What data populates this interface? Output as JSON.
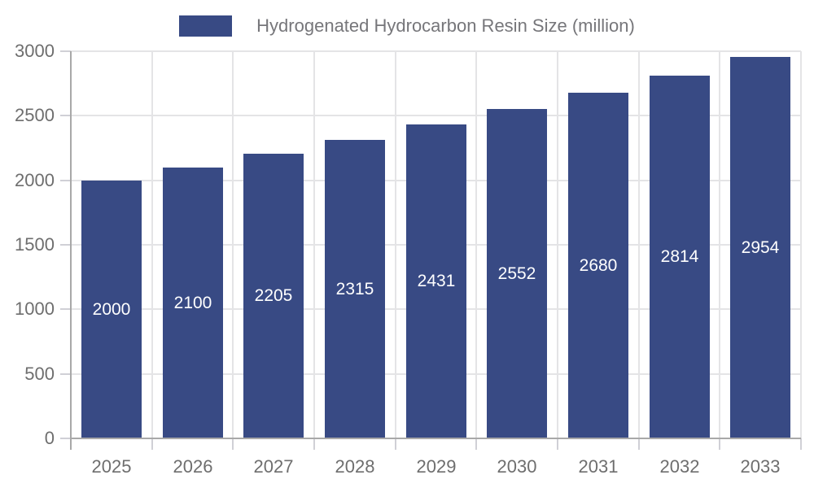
{
  "legend": {
    "label": "Hydrogenated Hydrocarbon Resin Size (million)"
  },
  "chart_data": {
    "type": "bar",
    "title": "",
    "xlabel": "",
    "ylabel": "",
    "categories": [
      "2025",
      "2026",
      "2027",
      "2028",
      "2029",
      "2030",
      "2031",
      "2032",
      "2033"
    ],
    "values": [
      2000,
      2100,
      2205,
      2315,
      2431,
      2552,
      2680,
      2814,
      2954
    ],
    "series_name": "Hydrogenated Hydrocarbon Resin Size (million)",
    "ylim": [
      0,
      3000
    ],
    "yticks": [
      0,
      500,
      1000,
      1500,
      2000,
      2500,
      3000
    ],
    "grid": true,
    "legend_position": "top-center",
    "value_labels": "inside-center"
  },
  "colors": {
    "bar": "#384a84",
    "legend_swatch": "#384a84",
    "value_label": "#ffffff",
    "tick_label": "#6e6e6e",
    "legend_text": "#76767a",
    "axis_line": "#a8a8a8",
    "gridline": "#e4e4e6",
    "tick_mark": "#d0d0d6",
    "background": "#ffffff"
  }
}
